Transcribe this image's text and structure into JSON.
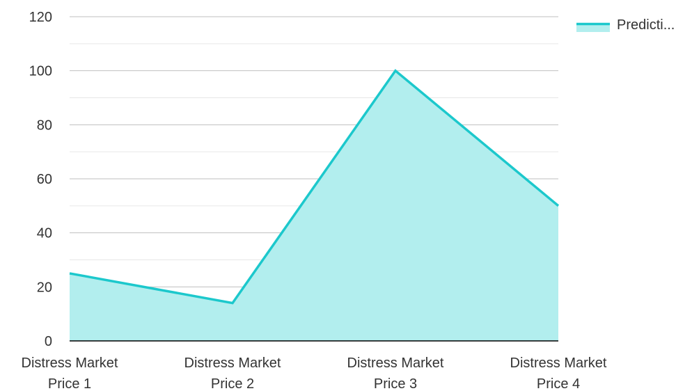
{
  "chart_data": {
    "type": "area",
    "categories": [
      [
        "Distress Market",
        "Price 1"
      ],
      [
        "Distress Market",
        "Price 2"
      ],
      [
        "Distress Market",
        "Price 3"
      ],
      [
        "Distress Market",
        "Price 4"
      ]
    ],
    "series": [
      {
        "name": "Predicti...",
        "values": [
          25,
          14,
          100,
          50
        ],
        "line_color": "#1cc8cc",
        "fill_color": "#b2eeee"
      }
    ],
    "y_ticks": [
      "0",
      "20",
      "40",
      "60",
      "80",
      "100",
      "120"
    ],
    "ylim": [
      0,
      120
    ],
    "title": "",
    "xlabel": "",
    "ylabel": "",
    "grid": true,
    "legend_position": "top-right",
    "colors": {
      "major_grid": "#bfbfbf",
      "minor_grid": "#e6e6e6",
      "axis": "#000000"
    }
  }
}
